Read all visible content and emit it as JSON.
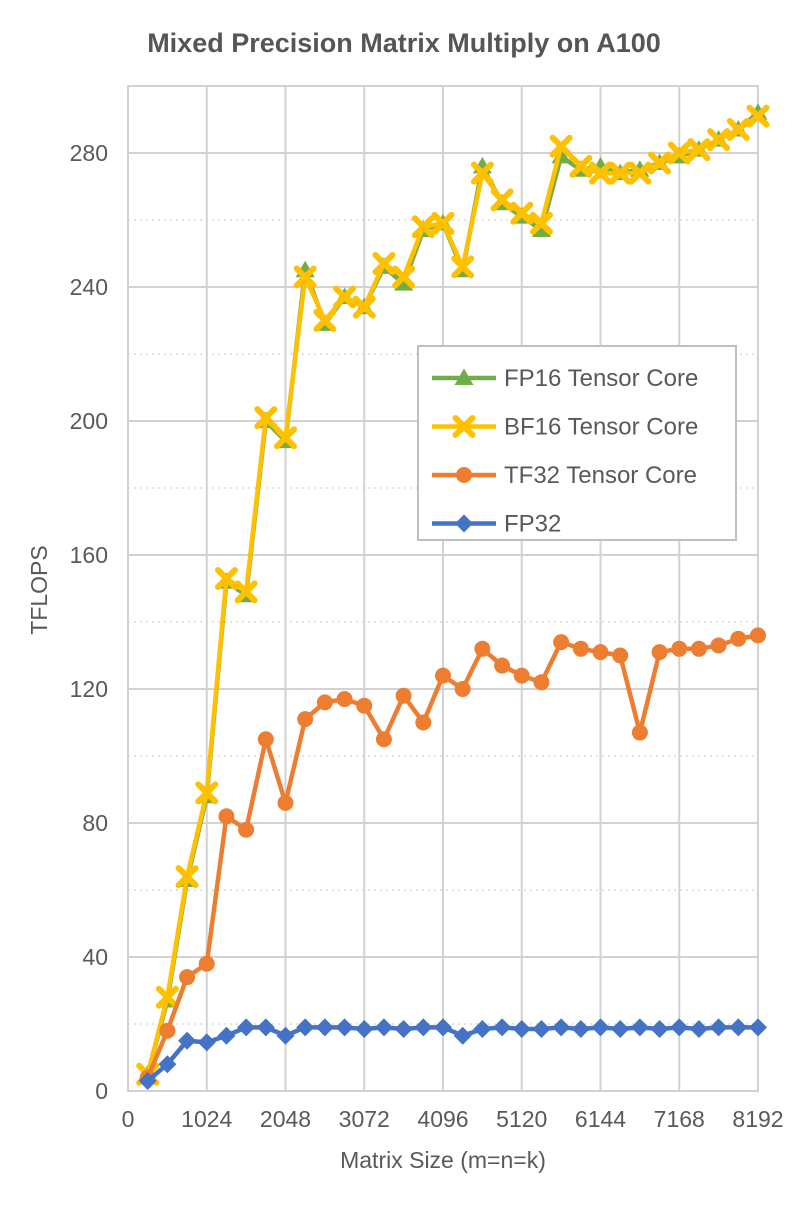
{
  "chart_data": {
    "type": "line",
    "title": "Mixed Precision Matrix Multiply on A100",
    "xlabel": "Matrix Size (m=n=k)",
    "ylabel": "TFLOPS",
    "xlim": [
      0,
      8192
    ],
    "ylim": [
      0,
      300
    ],
    "x_ticks": [
      0,
      1024,
      2048,
      3072,
      4096,
      5120,
      6144,
      7168,
      8192
    ],
    "y_ticks": [
      0,
      40,
      80,
      120,
      160,
      200,
      240,
      280
    ],
    "y_minor_step": 20,
    "grid": "major-solid-minor-dotted-horizontal",
    "legend_position": "inside-center-right-box",
    "x": [
      256,
      512,
      768,
      1024,
      1280,
      1536,
      1792,
      2048,
      2304,
      2560,
      2816,
      3072,
      3328,
      3584,
      3840,
      4096,
      4352,
      4608,
      4864,
      5120,
      5376,
      5632,
      5888,
      6144,
      6400,
      6656,
      6912,
      7168,
      7424,
      7680,
      7936,
      8192
    ],
    "series": [
      {
        "name": "FP16 Tensor Core",
        "color": "#70AD47",
        "marker": "triangle",
        "values": [
          5,
          27,
          63,
          88,
          152,
          148,
          200,
          194,
          245,
          229,
          237,
          234,
          246,
          241,
          257,
          259,
          245,
          276,
          265,
          261,
          257,
          279,
          275,
          276,
          274,
          275,
          277,
          279,
          281,
          284,
          287,
          292
        ]
      },
      {
        "name": "BF16 Tensor Core",
        "color": "#FFC000",
        "marker": "x",
        "values": [
          5,
          28,
          64,
          89,
          153,
          149,
          201,
          195,
          243,
          230,
          237,
          234,
          247,
          243,
          258,
          259,
          246,
          274,
          266,
          262,
          259,
          282,
          276,
          274,
          274,
          274,
          277,
          280,
          281,
          284,
          287,
          291
        ]
      },
      {
        "name": "TF32 Tensor Core",
        "color": "#ED7D31",
        "marker": "circle",
        "values": [
          4,
          18,
          34,
          38,
          82,
          78,
          105,
          86,
          111,
          116,
          117,
          115,
          105,
          118,
          110,
          124,
          120,
          132,
          127,
          124,
          122,
          134,
          132,
          131,
          130,
          107,
          131,
          132,
          132,
          133,
          135,
          136
        ]
      },
      {
        "name": "FP32",
        "color": "#4472C4",
        "marker": "diamond",
        "values": [
          3,
          8,
          15,
          14.5,
          16.5,
          19,
          19,
          16.5,
          19,
          19,
          19,
          18.5,
          19,
          18.5,
          19,
          19,
          16.5,
          18.5,
          19,
          18.5,
          18.5,
          19,
          18.5,
          19,
          18.5,
          19,
          18.5,
          19,
          18.5,
          19,
          19,
          19
        ]
      }
    ],
    "style": {
      "grid_major_color": "#D2D2D2",
      "grid_minor_color": "#D9D9D9",
      "plot_border_color": "#D2D2D2",
      "legend_border_color": "#BFBFBF",
      "text_color": "#595959",
      "background": "#FFFFFF"
    }
  }
}
